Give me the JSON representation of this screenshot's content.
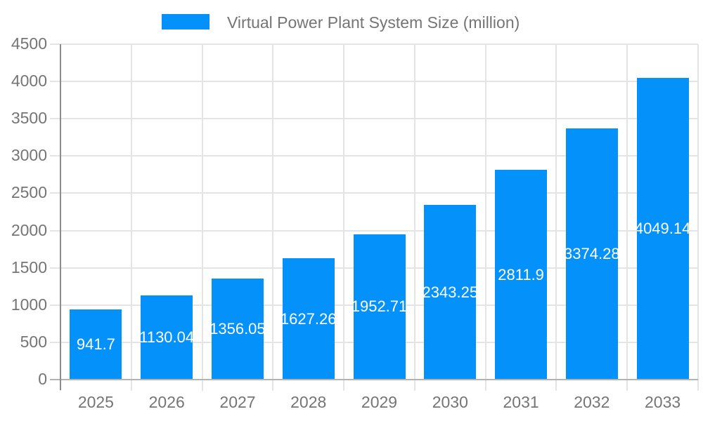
{
  "chart_data": {
    "type": "bar",
    "title": "Virtual Power Plant System Size (million)",
    "categories": [
      "2025",
      "2026",
      "2027",
      "2028",
      "2029",
      "2030",
      "2031",
      "2032",
      "2033"
    ],
    "values": [
      941.7,
      1130.04,
      1356.05,
      1627.26,
      1952.71,
      2343.25,
      2811.9,
      3374.28,
      4049.14
    ],
    "bar_labels": [
      "941.7",
      "1130.04",
      "1356.05",
      "1627.26",
      "1952.71",
      "2343.25",
      "2811.9",
      "3374.28",
      "4049.14"
    ],
    "ylim": [
      0,
      4500
    ],
    "yticks": [
      0,
      500,
      1000,
      1500,
      2000,
      2500,
      3000,
      3500,
      4000,
      4500
    ],
    "xlabel": "",
    "ylabel": "",
    "grid": true,
    "legend_position": "top",
    "legend_entries": [
      "Virtual Power Plant System Size (million)"
    ]
  },
  "colors": {
    "bar": "#0591fa",
    "axis_text": "#757575",
    "bar_label_text": "#ffffff",
    "gridline": "#e4e4e4",
    "baseline": "#b3b3b3",
    "axis_line": "#8c8c8c",
    "background": "#ffffff"
  }
}
